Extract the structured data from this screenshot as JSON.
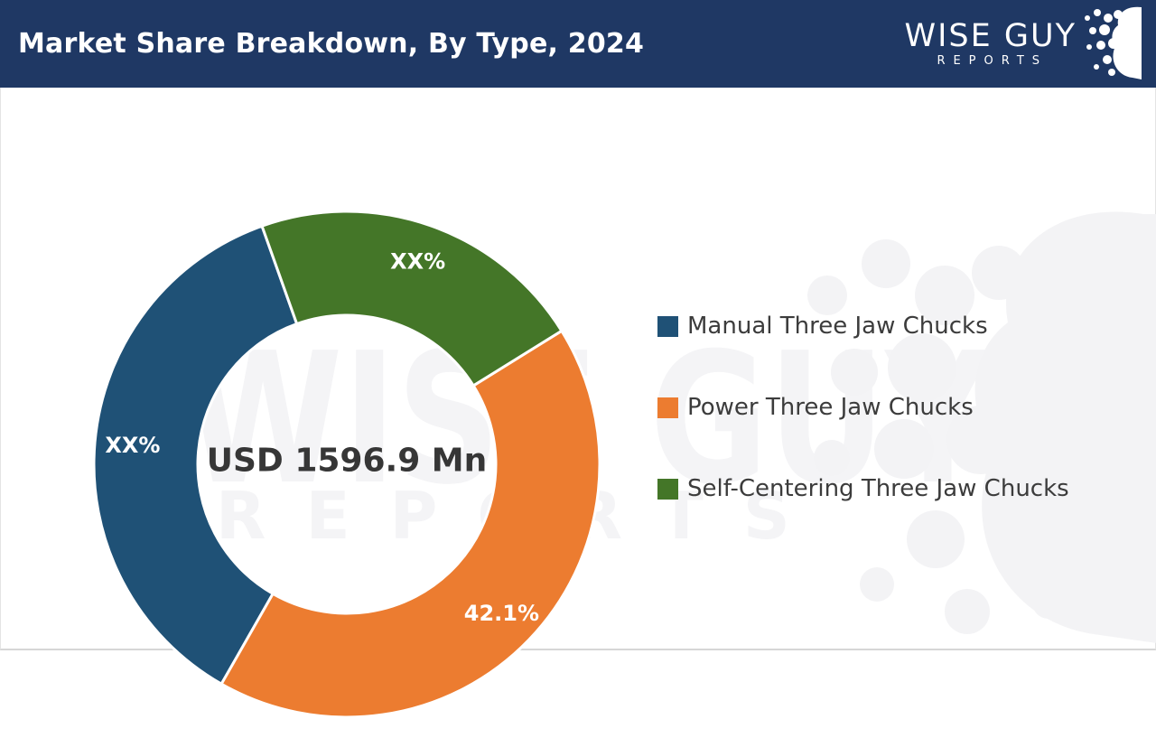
{
  "header": {
    "title": "Market Share Breakdown, By Type, 2024",
    "bg_color": "#1F3864",
    "logo": {
      "name": "WISE GUY",
      "sub": "REPORTS"
    }
  },
  "watermark": {
    "line1": "WISE GUY",
    "line2": "REPORTS"
  },
  "chart_data": {
    "type": "pie",
    "donut": true,
    "title": "Market Share Breakdown, By Type, 2024",
    "center_label": "USD 1596.9 Mn",
    "legend_position": "right",
    "start_angle_deg": 109.6,
    "direction": "counterclockwise",
    "segments": [
      {
        "label": "Manual Three Jaw Chucks",
        "value_pct": 36.3,
        "display_label": "XX%",
        "color": "#1F5176"
      },
      {
        "label": "Power Three Jaw Chucks",
        "value_pct": 42.1,
        "display_label": "42.1%",
        "color": "#EC7C30"
      },
      {
        "label": "Self-Centering Three Jaw Chucks",
        "value_pct": 21.6,
        "display_label": "XX%",
        "color": "#447628"
      }
    ]
  }
}
